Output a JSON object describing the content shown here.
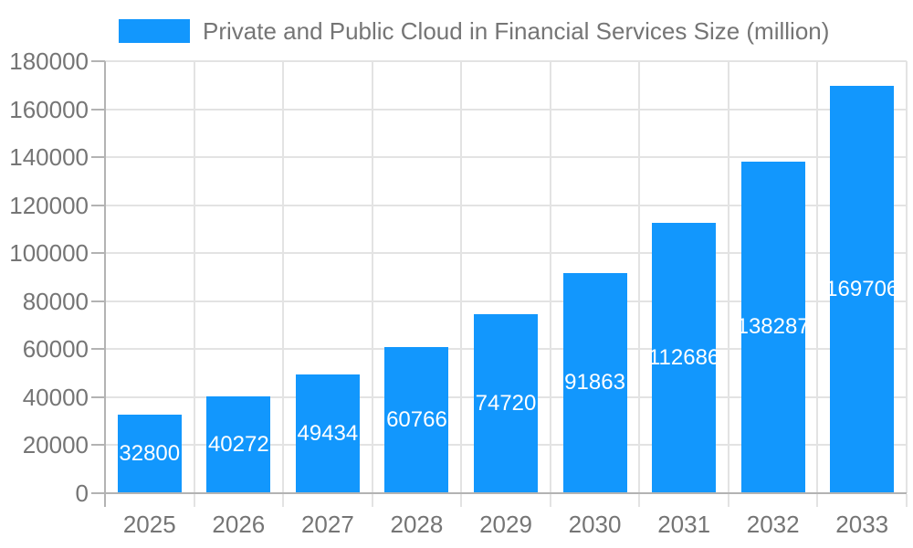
{
  "chart_data": {
    "type": "bar",
    "title": "Private and Public Cloud in Financial Services Size (million)",
    "legend_position": "top",
    "categories": [
      "2025",
      "2026",
      "2027",
      "2028",
      "2029",
      "2030",
      "2031",
      "2032",
      "2033"
    ],
    "values": [
      32800,
      40272,
      49434,
      60766,
      74720,
      91863,
      112686,
      138287,
      169706
    ],
    "value_labels_position": "inside-center",
    "xlabel": "",
    "ylabel": "",
    "ylim": [
      0,
      180000
    ],
    "ytick_step": 20000,
    "yticks": [
      0,
      20000,
      40000,
      60000,
      80000,
      100000,
      120000,
      140000,
      160000,
      180000
    ],
    "grid": true,
    "colors": {
      "bar": "#1297fd",
      "value_label": "#ffffff",
      "grid_line": "#e3e3e3",
      "axis_line": "#b3b3b3",
      "tick_label": "#757575",
      "legend_text": "#757575",
      "background": "#ffffff"
    }
  }
}
